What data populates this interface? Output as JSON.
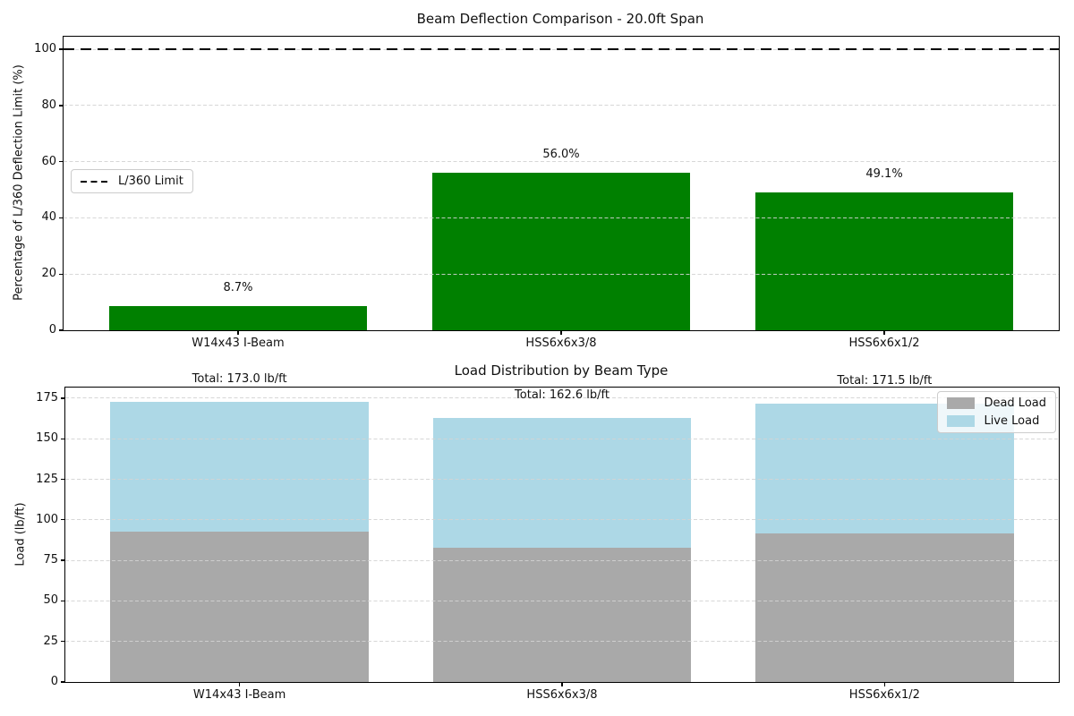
{
  "colors": {
    "background": "#ffffff",
    "axes": "#000000",
    "grid": "#d3d3d3",
    "deflection_bar": "#008000",
    "dead_load": "#a9a9a9",
    "live_load": "#add8e6",
    "limit_line": "#000000"
  },
  "chart_data": [
    {
      "type": "bar",
      "title": "Beam Deflection Comparison - 20.0ft Span",
      "xlabel": "",
      "ylabel": "Percentage of L/360 Deflection Limit (%)",
      "categories": [
        "W14x43 I-Beam",
        "HSS6x6x3/8",
        "HSS6x6x1/2"
      ],
      "values": [
        8.7,
        56.0,
        49.1
      ],
      "bar_labels": [
        "8.7%",
        "56.0%",
        "49.1%"
      ],
      "bar_color": "#008000",
      "ylim": [
        0,
        104.5
      ],
      "yticks": [
        0,
        20,
        40,
        60,
        80,
        100
      ],
      "grid": "horizontal dashed",
      "ref_line": {
        "value": 100,
        "color": "#000000",
        "style": "dashed",
        "label": "L/360 Limit"
      },
      "legend": {
        "position": "center left",
        "entries": [
          {
            "label": "L/360 Limit",
            "marker": "dashed-line",
            "color": "#000000"
          }
        ]
      }
    },
    {
      "type": "bar",
      "stacked": true,
      "title": "Load Distribution by Beam Type",
      "xlabel": "",
      "ylabel": "Load (lb/ft)",
      "categories": [
        "W14x43 I-Beam",
        "HSS6x6x3/8",
        "HSS6x6x1/2"
      ],
      "series": [
        {
          "name": "Dead Load",
          "color": "#a9a9a9",
          "values": [
            93.0,
            82.6,
            91.5
          ]
        },
        {
          "name": "Live Load",
          "color": "#add8e6",
          "values": [
            80.0,
            80.0,
            80.0
          ]
        }
      ],
      "totals": [
        173.0,
        162.6,
        171.5
      ],
      "bar_labels": [
        "Total: 173.0 lb/ft",
        "Total: 162.6 lb/ft",
        "Total: 171.5 lb/ft"
      ],
      "ylim": [
        0,
        181.6
      ],
      "yticks": [
        0,
        25,
        50,
        75,
        100,
        125,
        150,
        175
      ],
      "grid": "horizontal dashed",
      "legend": {
        "position": "upper right",
        "entries": [
          {
            "label": "Dead Load",
            "marker": "patch",
            "color": "#a9a9a9"
          },
          {
            "label": "Live Load",
            "marker": "patch",
            "color": "#add8e6"
          }
        ]
      }
    }
  ]
}
